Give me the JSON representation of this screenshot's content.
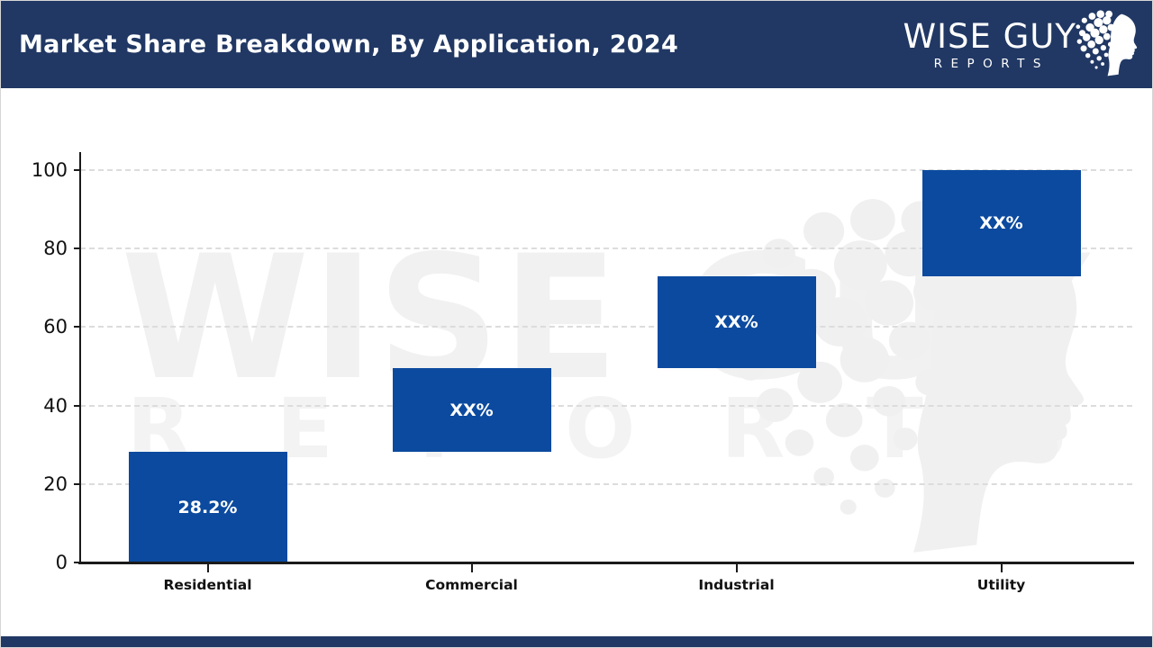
{
  "header": {
    "title": "Market Share Breakdown, By Application, 2024",
    "logo": {
      "line1": "WISE GUY",
      "line2": "REPORTS"
    }
  },
  "watermark": {
    "line1": "WISE GUY",
    "line2": "REPORTS"
  },
  "colors": {
    "header_bg": "#213864",
    "footer_bg": "#213864",
    "bar": "#0b4a9f",
    "bar_label": "#ffffff",
    "axis": "#1a1a1a",
    "gridline": "#dcdcdc",
    "tick_text": "#111111",
    "watermark": "#f1f1f1"
  },
  "chart_data": {
    "type": "bar",
    "subtype": "floating-waterfall",
    "title": "Market Share Breakdown, By Application, 2024",
    "categories": [
      "Residential",
      "Commercial",
      "Industrial",
      "Utility"
    ],
    "segments": [
      {
        "category": "Residential",
        "start": 0,
        "end": 28.2,
        "label": "28.2%"
      },
      {
        "category": "Commercial",
        "start": 28.2,
        "end": 49.5,
        "label": "XX%"
      },
      {
        "category": "Industrial",
        "start": 49.5,
        "end": 73,
        "label": "XX%"
      },
      {
        "category": "Utility",
        "start": 73,
        "end": 100,
        "label": "XX%"
      }
    ],
    "yticks": [
      0,
      20,
      40,
      60,
      80,
      100
    ],
    "ylim": [
      0,
      107
    ],
    "xlabel": "",
    "ylabel": "",
    "grid": "horizontal-dashed",
    "legend": "none",
    "bar_color": "#0b4a9f",
    "bar_label_color": "#ffffff"
  }
}
